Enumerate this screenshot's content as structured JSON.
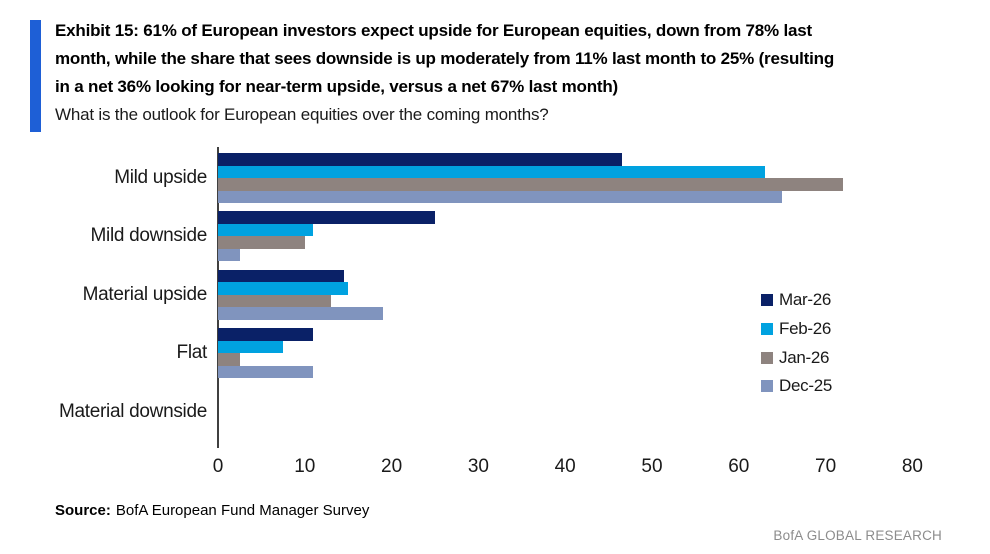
{
  "colors": {
    "accent": "#1E5FD6",
    "axis": "#404040",
    "brand_text": "#8C8C8C"
  },
  "header": {
    "exhibit_title_lines": [
      "Exhibit 15: 61% of European investors expect upside for European equities, down from 78% last",
      "month, while the share that sees downside is up moderately from 11% last month to 25% (resulting",
      "in a net 36% looking for near-term upside, versus a net 67% last month)"
    ],
    "question": "What is the outlook for European equities over the coming months?"
  },
  "footer": {
    "source_label": "Source:",
    "source_text": "BofA European Fund Manager Survey",
    "brand": "BofA GLOBAL RESEARCH"
  },
  "chart_data": {
    "type": "bar",
    "orientation": "horizontal",
    "title": "What is the outlook for European equities over the coming months?",
    "categories": [
      "Mild upside",
      "Mild downside",
      "Material upside",
      "Flat",
      "Material downside"
    ],
    "series": [
      {
        "name": "Mar-26",
        "color": "#0A2167",
        "values": [
          46.5,
          25,
          14.5,
          11,
          0
        ]
      },
      {
        "name": "Feb-26",
        "color": "#00A2E0",
        "values": [
          63,
          11,
          15,
          7.5,
          0
        ]
      },
      {
        "name": "Jan-26",
        "color": "#8E837F",
        "values": [
          72,
          10,
          13,
          2.5,
          0
        ]
      },
      {
        "name": "Dec-25",
        "color": "#8094BE",
        "values": [
          65,
          2.5,
          19,
          11,
          0
        ]
      }
    ],
    "xlim": [
      0,
      80
    ],
    "xticks": [
      0,
      10,
      20,
      30,
      40,
      50,
      60,
      70,
      80
    ],
    "xlabel": "",
    "ylabel": "",
    "grid": false,
    "legend_position": "right-middle",
    "values_unit": "percent (implied by title)"
  }
}
